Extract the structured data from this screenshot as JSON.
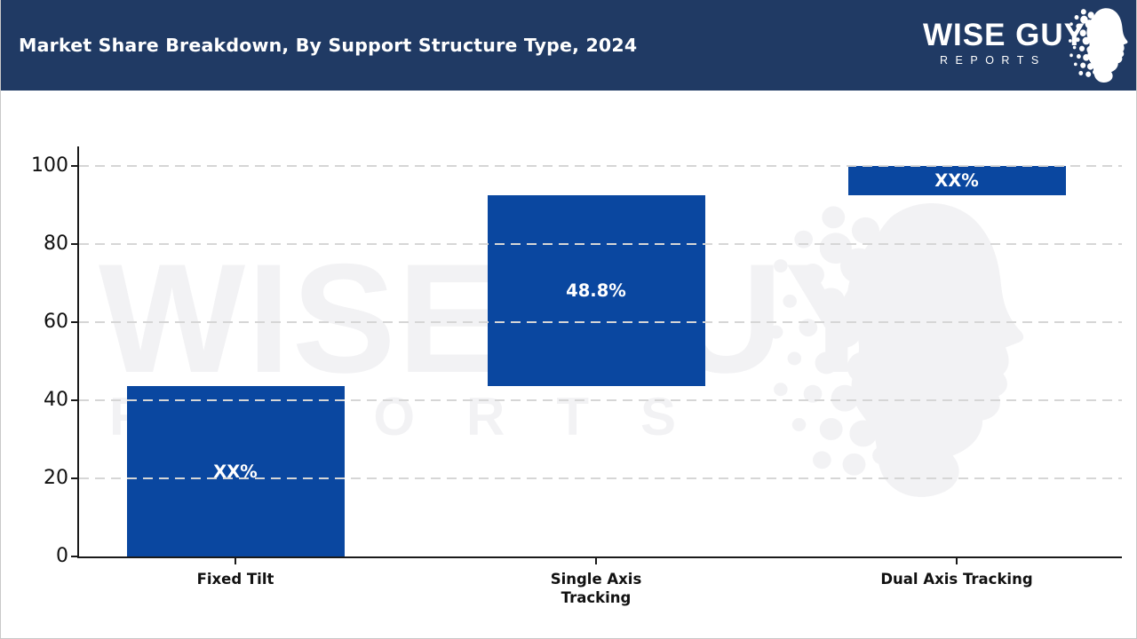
{
  "header": {
    "title": "Market Share Breakdown, By Support Structure Type, 2024",
    "logo": {
      "line1": "WISE GUY",
      "line2": "REPORTS"
    }
  },
  "watermark": {
    "line1": "WISE GUY",
    "line2": "REPORTS"
  },
  "colors": {
    "header_bg": "#203A64",
    "bar": "#0A47A0",
    "grid": "#D6D6D6",
    "axis": "#1A1A1A",
    "watermark": "#F2F2F4",
    "title_text": "#FFFFFF",
    "bar_label": "#FFFFFF",
    "frame_border": "#C9C9C9"
  },
  "chart_data": {
    "type": "bar",
    "subtype": "waterfall",
    "title": "Market Share Breakdown, By Support Structure Type, 2024",
    "categories": [
      "Fixed Tilt",
      "Single Axis Tracking",
      "Dual Axis Tracking"
    ],
    "category_lines": [
      [
        "Fixed Tilt"
      ],
      [
        "Single Axis",
        "Tracking"
      ],
      [
        "Dual Axis Tracking"
      ]
    ],
    "segments": [
      {
        "category": "Fixed Tilt",
        "from": 0,
        "to": 43.6,
        "label": "XX%"
      },
      {
        "category": "Single Axis Tracking",
        "from": 43.6,
        "to": 92.4,
        "label": "48.8%"
      },
      {
        "category": "Dual Axis Tracking",
        "from": 92.4,
        "to": 100,
        "label": "XX%"
      }
    ],
    "ylim": [
      0,
      100
    ],
    "yticks": [
      0,
      20,
      40,
      60,
      80,
      100
    ],
    "grid": "horizontal-dashed",
    "legend": "none",
    "xlabel": "",
    "ylabel": ""
  }
}
